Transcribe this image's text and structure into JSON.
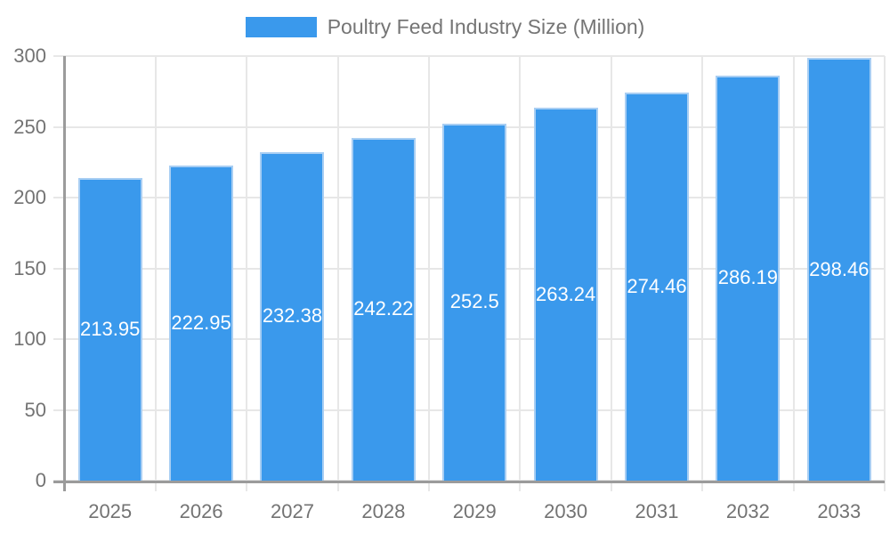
{
  "chart_data": {
    "type": "bar",
    "legend": "Poultry Feed Industry Size (Million)",
    "legend_position": "top",
    "categories": [
      "2025",
      "2026",
      "2027",
      "2028",
      "2029",
      "2030",
      "2031",
      "2032",
      "2033"
    ],
    "series": [
      {
        "name": "Poultry Feed Industry Size (Million)",
        "values": [
          213.95,
          222.95,
          232.38,
          242.22,
          252.5,
          263.24,
          274.46,
          286.19,
          298.46
        ]
      }
    ],
    "value_labels": [
      "213.95",
      "222.95",
      "232.38",
      "242.22",
      "252.5",
      "263.24",
      "274.46",
      "286.19",
      "298.46"
    ],
    "xlabel": "",
    "ylabel": "",
    "ylim": [
      0,
      300
    ],
    "yticks": [
      0,
      50,
      100,
      150,
      200,
      250,
      300
    ],
    "grid": true,
    "colors": {
      "bar_fill": "#3a99ec",
      "bar_border": "#a8cef3",
      "bar_value_text": "#ffffff",
      "grid_line": "#e7e7e7",
      "axis_line": "#9b9b9b",
      "tick_label": "#737373",
      "legend_text": "#757575",
      "background": "#ffffff"
    }
  }
}
